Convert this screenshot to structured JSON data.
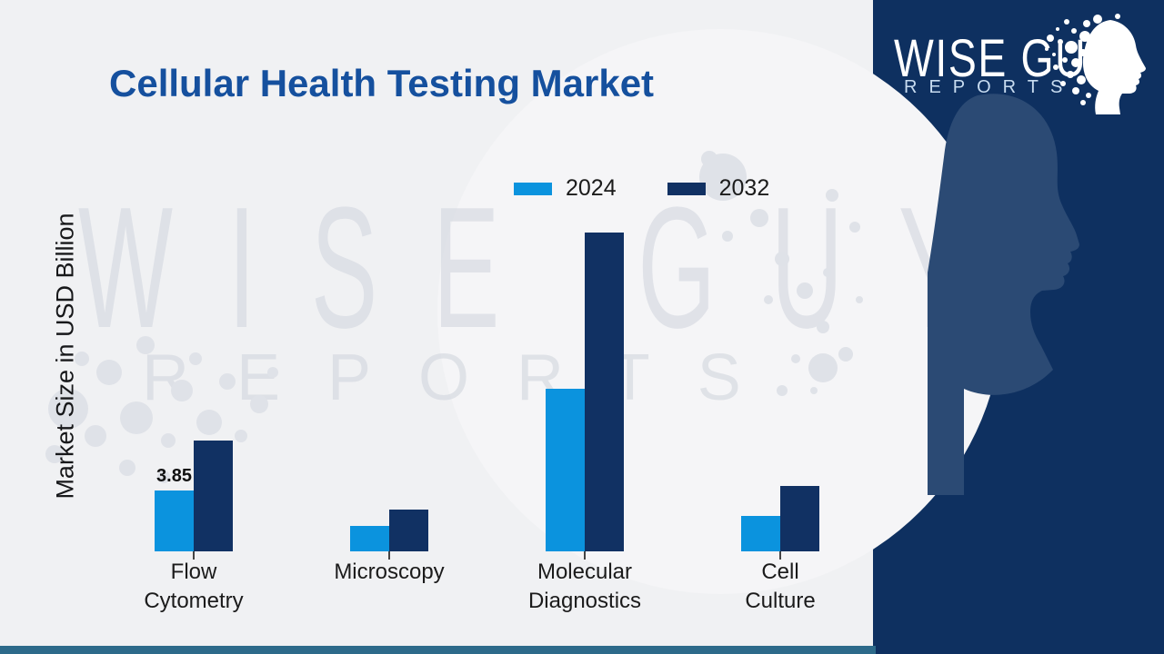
{
  "title": "Cellular Health Testing Market",
  "y_axis_label": "Market Size in USD Billion",
  "legend": {
    "items": [
      {
        "label": "2024",
        "color": "#0b93de"
      },
      {
        "label": "2032",
        "color": "#113163"
      }
    ]
  },
  "watermark": {
    "line1": "WISE GUY",
    "line2": "REPORTS"
  },
  "logo": {
    "line1": "WISE GUY",
    "line2": "REPORTS"
  },
  "colors": {
    "background": "#f0f1f3",
    "title_blue": "#15509e",
    "series_2024": "#0b93de",
    "series_2032": "#113163",
    "panel_navy": "#0e3060",
    "panel_face": "#2b4a74",
    "bottom_teal": "#2d6a8a",
    "watermark_gray": "#d4d8e0"
  },
  "chart_data": {
    "type": "bar",
    "title": "Cellular Health Testing Market",
    "xlabel": "",
    "ylabel": "Market Size in USD Billion",
    "categories": [
      "Flow Cytometry",
      "Microscopy",
      "Molecular Diagnostics",
      "Cell Culture"
    ],
    "series": [
      {
        "name": "2024",
        "color": "#0b93de",
        "values": [
          3.85,
          1.6,
          10.3,
          2.25
        ]
      },
      {
        "name": "2032",
        "color": "#113163",
        "values": [
          7.0,
          2.65,
          20.2,
          4.15
        ]
      }
    ],
    "value_labels": [
      {
        "series": "2024",
        "category": "Flow Cytometry",
        "text": "3.85"
      }
    ],
    "ylim": [
      0,
      21
    ],
    "grid": false,
    "axis_lines": false,
    "legend_position": "top"
  }
}
